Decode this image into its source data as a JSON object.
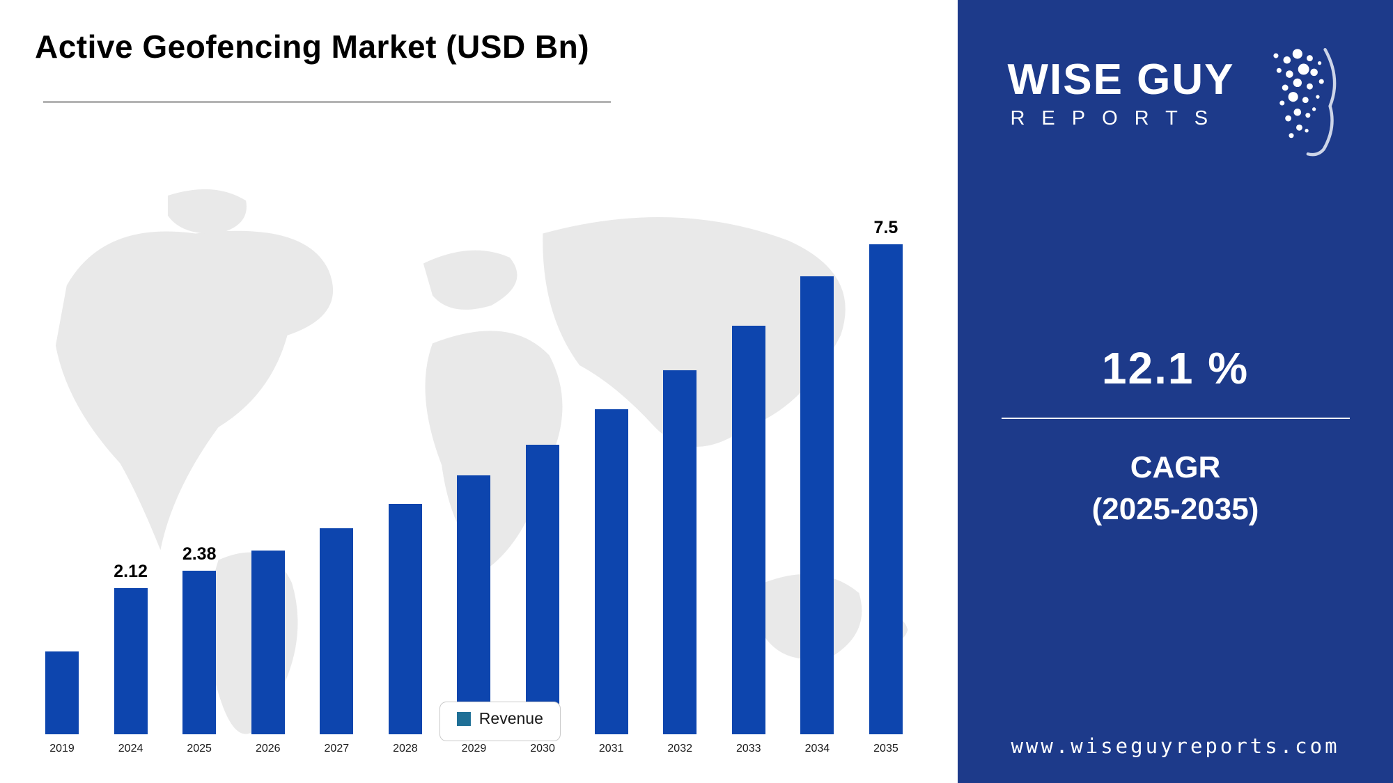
{
  "title": "Active Geofencing Market (USD Bn)",
  "legend": {
    "label": "Revenue",
    "swatch_color": "#1f6f96"
  },
  "chart_data": {
    "type": "bar",
    "title": "Active Geofencing Market (USD Bn)",
    "categories": [
      "2019",
      "2024",
      "2025",
      "2026",
      "2027",
      "2028",
      "2029",
      "2030",
      "2031",
      "2032",
      "2033",
      "2034",
      "2035"
    ],
    "values": [
      1.2,
      2.12,
      2.38,
      2.67,
      2.99,
      3.35,
      3.76,
      4.21,
      4.72,
      5.29,
      5.93,
      6.65,
      7.5
    ],
    "data_labels": {
      "2024": "2.12",
      "2025": "2.38",
      "2035": "7.5"
    },
    "xlabel": "",
    "ylabel": "",
    "ylim": [
      0,
      7.5
    ],
    "bar_color": "#0d45ae",
    "grid": false,
    "legend_position": "bottom",
    "legend_entries": [
      "Revenue"
    ]
  },
  "sidebar": {
    "background_color": "#1d3a8a",
    "logo_line1": "WISE GUY",
    "logo_line2": "REPORTS",
    "cagr_value": "12.1 %",
    "cagr_label_line1": "CAGR",
    "cagr_label_line2": "(2025-2035)",
    "website": "www.wiseguyreports.com"
  }
}
